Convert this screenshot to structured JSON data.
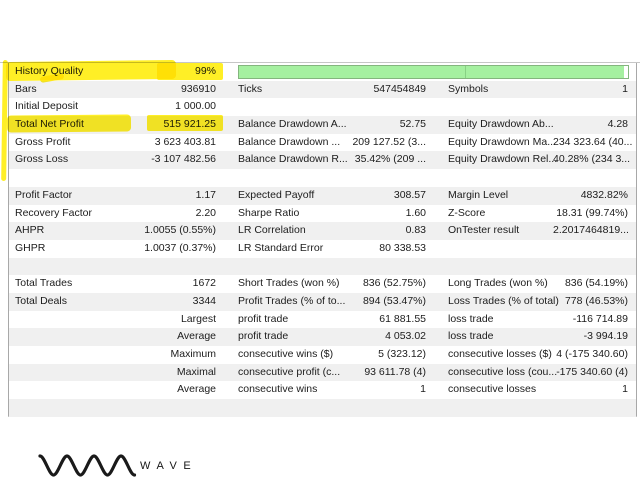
{
  "colors": {
    "row_alt": "#f0f0f0",
    "highlight_yellow": "#ffec00",
    "bar_fill_green": "#a5f0a0",
    "bar_border_green": "#84b57e",
    "table_border": "#a8a8a8"
  },
  "quality_bar": {
    "percent": 99
  },
  "annotations": {
    "highlighted_fields": [
      "History Quality",
      "99%",
      "Total Net Profit",
      "515 921.25"
    ]
  },
  "table": {
    "rows": [
      [
        "History Quality",
        "99%",
        "",
        "",
        "",
        ""
      ],
      [
        "Bars",
        "936910",
        "Ticks",
        "547454849",
        "Symbols",
        "1"
      ],
      [
        "Initial Deposit",
        "1 000.00",
        "",
        "",
        "",
        ""
      ],
      [
        "Total Net Profit",
        "515 921.25",
        "Balance Drawdown A...",
        "52.75",
        "Equity Drawdown Ab...",
        "4.28"
      ],
      [
        "Gross Profit",
        "3 623 403.81",
        "Balance Drawdown ...",
        "209 127.52 (3...",
        "Equity Drawdown Ma...",
        "234 323.64 (40..."
      ],
      [
        "Gross Loss",
        "-3 107 482.56",
        "Balance Drawdown R...",
        "35.42% (209 ...",
        "Equity Drawdown Rel...",
        "40.28% (234 3..."
      ],
      [
        "",
        "",
        "",
        "",
        "",
        ""
      ],
      [
        "Profit Factor",
        "1.17",
        "Expected Payoff",
        "308.57",
        "Margin Level",
        "4832.82%"
      ],
      [
        "Recovery Factor",
        "2.20",
        "Sharpe Ratio",
        "1.60",
        "Z-Score",
        "18.31 (99.74%)"
      ],
      [
        "AHPR",
        "1.0055 (0.55%)",
        "LR Correlation",
        "0.83",
        "OnTester result",
        "2.2017464819..."
      ],
      [
        "GHPR",
        "1.0037 (0.37%)",
        "LR Standard Error",
        "80 338.53",
        "",
        ""
      ],
      [
        "",
        "",
        "",
        "",
        "",
        ""
      ],
      [
        "Total Trades",
        "1672",
        "Short Trades (won %)",
        "836 (52.75%)",
        "Long Trades (won %)",
        "836 (54.19%)"
      ],
      [
        "Total Deals",
        "3344",
        "Profit Trades (% of to...",
        "894 (53.47%)",
        "Loss Trades (% of total)",
        "778 (46.53%)"
      ],
      [
        "",
        "Largest",
        "profit trade",
        "61 881.55",
        "loss trade",
        "-116 714.89"
      ],
      [
        "",
        "Average",
        "profit trade",
        "4 053.02",
        "loss trade",
        "-3 994.19"
      ],
      [
        "",
        "Maximum",
        "consecutive wins ($)",
        "5 (323.12)",
        "consecutive losses ($)",
        "4 (-175 340.60)"
      ],
      [
        "",
        "Maximal",
        "consecutive profit (c...",
        "93 611.78 (4)",
        "consecutive loss (cou...",
        "-175 340.60 (4)"
      ],
      [
        "",
        "Average",
        "consecutive wins",
        "1",
        "consecutive losses",
        "1"
      ],
      [
        "",
        "",
        "",
        "",
        "",
        ""
      ]
    ]
  },
  "logo": {
    "text": "WAVE",
    "icon": "wave-squiggle-icon"
  }
}
